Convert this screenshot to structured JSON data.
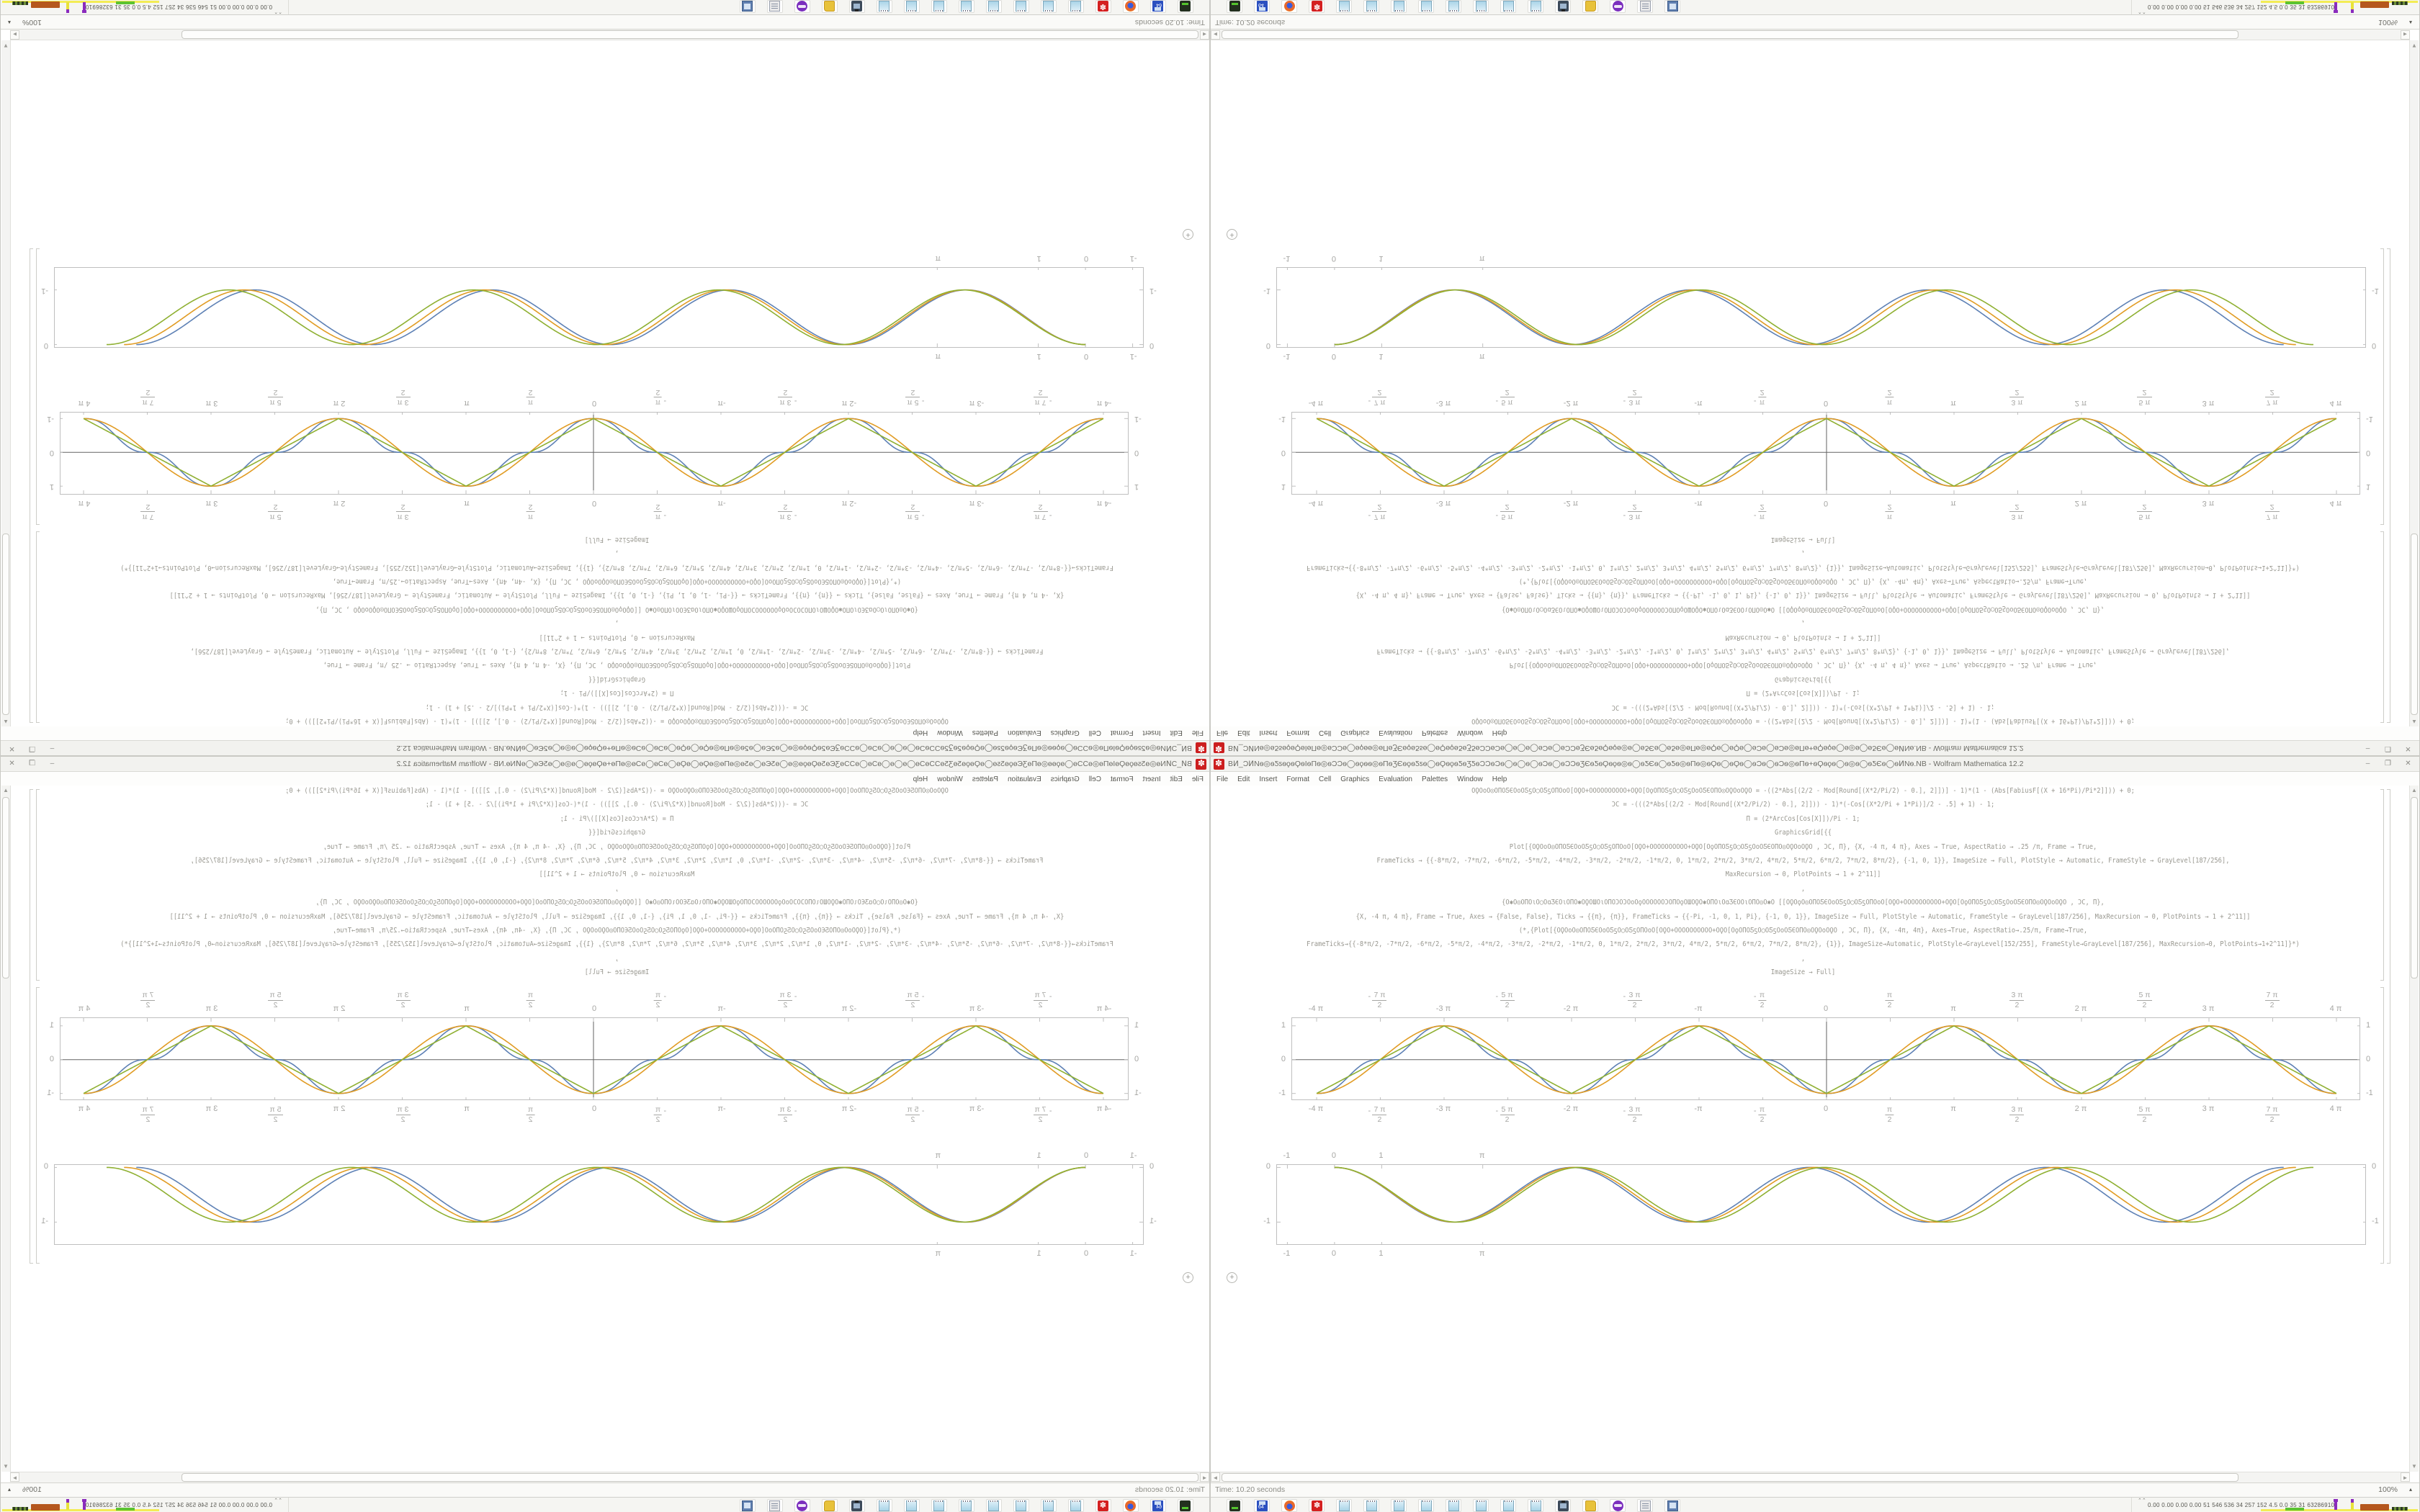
{
  "window": {
    "title": "ВͶ_ƆͶΝѳ◎ѳƼƽѳϙѳϘѳΙѳΠѳ◎ѳƆϽѳ◯ѳϙѳѳ◎ѳΠѳƷЄѳϙѳƼƽѳ◯ѳϘѳϙѳƼѳƷƼѳϽƆѳϽѳ◯ѳ◯ѳ◯ѳϽѳ◯ѳϽƆѳƷЄѳƼѳϘѳϙѳ◎ѳ◯ѳƼЄѳ◯ѳƼѳ◎ѳΠѳ◎ѳϘѳ◯ѳϘѳ◯ѳƆѳ◯ѳϽѳ◎ѳΠѳ+ѳϘѳϙѳ◯ѳ◎ѳ◯ѳƼЄѳ◯ѳͶΝѳ.ΝВ - Wolfram Mathematica 12.2",
    "menu": [
      "File",
      "Edit",
      "Insert",
      "Format",
      "Cell",
      "Graphics",
      "Evaluation",
      "Palettes",
      "Window",
      "Help"
    ],
    "buttons": {
      "minimize": "–",
      "restore": "❐",
      "close": "✕"
    }
  },
  "notebook": {
    "code_lines": [
      "ΟϘΟοΟ◎ΟΠΟƼЄΟοΟƼƽΟ◯ΟƼƽΟΠΟοΟ[ΟϘΟ+ΟΟΟΟΟΟΟΟΟΟ+ΟϘΟ[ΟϙΟΠΟƼƽΟ◯ΟƼƽΟοΟƼЄΟΠΟ◎ΟϘΟοΟϘΟ   = -((2*Abs[(2/2 - Mod[Round[(X*2/Pi/2) - 0.], 2]])] - 1)*(1 - (Abs[FabiusF[(X + 16*Pi)/Pi*2]])) + 0;",
      "ƆC = -(((2*Abs[(2/2 - Mod[Round[(X*2/Pi/2) - 0.], 2]])) - 1)*(-Cos[(X*2/Pi + 1*Pi)]/2 - .5] + 1) - 1;",
      "Π = (2*ArcCos[Cos[X]])/Pi  - 1;",
      "GraphicsGrid[{{",
      "Plot[{ΟϘΟοΟ◎ΟΠΟƼЄΟοΟƼƽΟ◯ΟƼƽΟΠΟοΟ[ΟϘΟ+ΟΟΟΟΟΟΟΟΟΟ+ΟϘΟ[ΟϙΟΠΟƼƽΟ◯ΟƼƽΟοΟƼЄΟΠΟ◎ΟϘΟοΟϘΟ   , ƆC, Π}, {X, -4 π, 4 π}, Axes → True, AspectRatio → .25 /π, Frame → True,",
      "FrameTicks → {{-8*π/2, -7*π/2, -6*π/2, -5*π/2, -4*π/2, -3*π/2, -2*π/2, -1*π/2, 0, 1*π/2, 2*π/2, 3*π/2, 4*π/2, 5*π/2, 6*π/2, 7*π/2, 8*π/2}, {-1, 0, 1}}, ImageSize → Full, PlotStyle → Automatic, FrameStyle → GrayLevel[187/256],",
      "MaxRecursion → 0, PlotPoints → 1 + 2^11]]",
      ",",
      "{Ο✱Ο◎ΟΠΟιΟ◯ΟɑƷЄΟιΟΠΟ✱ΟϘΟШΟιΟΠΟƆΟϽΟοΟϙΟΟΟΟΟΟϽΟΠΟϙΟШΟϘΟ✱ΟΠΟιΟɑƷЄΟΟιΟΠΟ◎Ο✱Ο  [[ΟϘΟϙΟ◎ΟΠΟƼЄΟοΟƼƽΟ◯ΟƼƽΟΠΟοΟ[ΟϘΟ+ΟΟΟΟΟΟΟΟΟΟ+ΟϘΟ[ΟϙΟΠΟƼƽΟ◯ΟƼƽΟοΟƼЄΟΠΟ◎ΟϘΟοΟϘΟ   , ƆC, Π},",
      "{X, -4 π, 4 π}, Frame → True, Axes → {False, False},  Ticks → {{π}, {π}}, FrameTicks → {{-Pi, -1, 0, 1, Pi}, {-1, 0, 1}}, ImageSize → Full, PlotStyle → Automatic, FrameStyle → GrayLevel[187/256], MaxRecursion → 0, PlotPoints → 1 + 2^11]]",
      "(*,{Plot[{ΟϘΟοΟ◎ΟΠΟƼЄΟοΟƼƽΟ◯ΟƼƽΟΠΟοΟ[ΟϘΟ+ΟΟΟΟΟΟΟΟΟΟ+ΟϘΟ[ΟϙΟΠΟƼƽΟ◯ΟƼƽΟοΟƼЄΟΠΟ◎ΟϘΟοΟϘΟ   , ƆC, Π}, {X, -4π, 4π}, Axes→True, AspectRatio→.25/π, Frame→True,",
      "FrameTicks→{{-8*π/2, -7*π/2, -6*π/2, -5*π/2, -4*π/2, -3*π/2, -2*π/2, -1*π/2, 0, 1*π/2, 2*π/2, 3*π/2, 4*π/2, 5*π/2, 6*π/2, 7*π/2, 8*π/2}, {1}}, ImageSize→Automatic, PlotStyle→GrayLevel[152/255], FrameStyle→GrayLevel[187/256], MaxRecursion→0, PlotPoints→1+2^11]}*)",
      ",",
      "ImageSize → Full]"
    ],
    "plus_marker": "+"
  },
  "chart_data": [
    {
      "type": "line",
      "title": "",
      "xlabel": "",
      "ylabel": "",
      "xlim": [
        -13.17,
        13.17
      ],
      "ylim": [
        -1.22,
        1.23
      ],
      "grid": false,
      "frame": true,
      "axes": true,
      "legend_position": "none",
      "xticks_int": [
        {
          "v": -12.566,
          "l": "-4 π"
        },
        {
          "v": -9.425,
          "l": "-3 π"
        },
        {
          "v": -6.283,
          "l": "-2 π"
        },
        {
          "v": -3.1416,
          "l": "-π"
        },
        {
          "v": 0,
          "l": "0"
        },
        {
          "v": 3.1416,
          "l": "π"
        },
        {
          "v": 6.283,
          "l": "2 π"
        },
        {
          "v": 9.425,
          "l": "3 π"
        },
        {
          "v": 12.566,
          "l": "4 π"
        }
      ],
      "xticks_frac": [
        {
          "v": -10.996,
          "num": "7 π",
          "neg": true
        },
        {
          "v": -7.854,
          "num": "5 π",
          "neg": true
        },
        {
          "v": -4.712,
          "num": "3 π",
          "neg": true
        },
        {
          "v": -1.5708,
          "num": "π",
          "neg": true
        },
        {
          "v": 1.5708,
          "num": "π",
          "neg": false
        },
        {
          "v": 4.712,
          "num": "3 π",
          "neg": false
        },
        {
          "v": 7.854,
          "num": "5 π",
          "neg": false
        },
        {
          "v": 10.996,
          "num": "7 π",
          "neg": false
        }
      ],
      "frac_denominator": "2",
      "yticks": [
        {
          "v": 1,
          "l": "1"
        },
        {
          "v": 0,
          "l": "0"
        },
        {
          "v": -1,
          "l": "-1"
        }
      ],
      "series": [
        {
          "name": "smooth-staircase-wave",
          "color": "#5e81b5",
          "fn": "staircase",
          "x0": -12.566,
          "x1": 12.566
        },
        {
          "name": "negative-cosine",
          "color": "#e19c24",
          "fn": "negcos",
          "x0": -12.566,
          "x1": 12.566
        },
        {
          "name": "triangle-wave",
          "color": "#8fb032",
          "fn": "triangle",
          "x0": -12.566,
          "x1": 12.566
        }
      ]
    },
    {
      "type": "line",
      "title": "",
      "xlabel": "",
      "ylabel": "",
      "xlim": [
        -1.22,
        21.88
      ],
      "ylim": [
        -1.43,
        0.045
      ],
      "grid": false,
      "frame": true,
      "axes": false,
      "legend_position": "none",
      "xticks_int": [
        {
          "v": -1,
          "l": "-1"
        },
        {
          "v": 0,
          "l": "0"
        },
        {
          "v": 1,
          "l": "1"
        },
        {
          "v": 3.1416,
          "l": "π"
        }
      ],
      "xticks_frac": [],
      "frac_denominator": "",
      "yticks": [
        {
          "v": 0,
          "l": "0"
        },
        {
          "v": -1,
          "l": "-1"
        }
      ],
      "series": [
        {
          "name": "cosine-dip-blue",
          "color": "#5e81b5",
          "fn": "cosdip",
          "x0": 0,
          "x1": 20.12,
          "periods": 4
        },
        {
          "name": "cosine-dip-orange",
          "color": "#e19c24",
          "fn": "cosdip",
          "x0": 0,
          "x1": 20.38,
          "periods": 4
        },
        {
          "name": "cosine-dip-green",
          "color": "#8fb032",
          "fn": "cosdip",
          "x0": 0,
          "x1": 20.75,
          "periods": 4
        }
      ]
    }
  ],
  "statusbar": {
    "time_label": "Time: 10.20 seconds",
    "zoom_label": "100%",
    "zoom_caret": "▴"
  },
  "scrollbars": {
    "up": "▲",
    "down": "▼",
    "left": "◄",
    "right": "►"
  },
  "taskbar": {
    "icons": [
      {
        "name": "drive-icon",
        "cls": "g-drive"
      },
      {
        "name": "floppy-64-icon",
        "cls": "g-floppy"
      },
      {
        "name": "firefox-icon",
        "cls": "g-firefox"
      },
      {
        "name": "mathematica-app-icon",
        "cls": "g-gear"
      },
      {
        "name": "notepad-icon",
        "cls": "g-note"
      },
      {
        "name": "notepad-icon",
        "cls": "g-note"
      },
      {
        "name": "notepad-icon",
        "cls": "g-note"
      },
      {
        "name": "notepad-icon",
        "cls": "g-note"
      },
      {
        "name": "notepad-icon",
        "cls": "g-note"
      },
      {
        "name": "notepad-icon",
        "cls": "g-note"
      },
      {
        "name": "notepad-icon",
        "cls": "g-note"
      },
      {
        "name": "notepad-icon",
        "cls": "g-note"
      },
      {
        "name": "screenshot-icon",
        "cls": "g-shot"
      },
      {
        "name": "folder-icon",
        "cls": "g-folder"
      },
      {
        "name": "purple-app-icon",
        "cls": "g-purple"
      },
      {
        "name": "scroll-icon",
        "cls": "g-scroll"
      },
      {
        "name": "display-icon",
        "cls": "g-display"
      }
    ],
    "monitor": {
      "chevrons": "⌃⌃",
      "values": [
        "0.00",
        "0.00",
        "0.00",
        "0.00",
        "51",
        "546",
        "536",
        "34",
        "257",
        "152",
        "4.5",
        "0.0",
        "35",
        "31",
        "63286910"
      ]
    }
  },
  "colors": {
    "series_blue": "#5e81b5",
    "series_orange": "#e19c24",
    "series_green": "#8fb032",
    "frame_gray": "#bfbfbf",
    "axis_gray": "#636363",
    "code_gray": "#98978f"
  }
}
